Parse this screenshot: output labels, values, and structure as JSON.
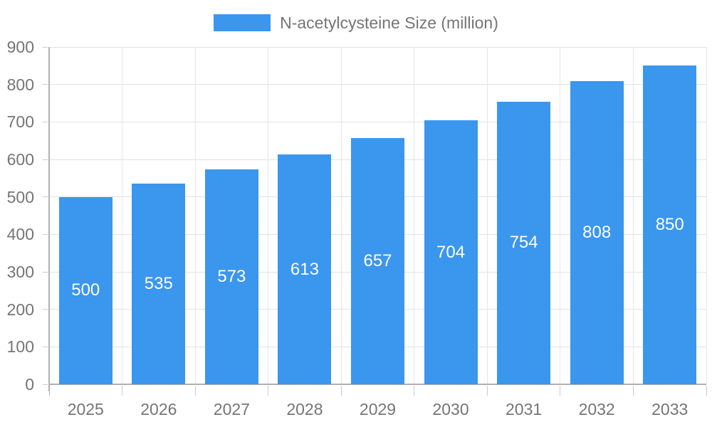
{
  "legend": {
    "label": "N-acetylcysteine Size (million)"
  },
  "colors": {
    "bar": "#3B96EE",
    "bar_label": "#FFFFFF",
    "axis_text": "#757575",
    "grid_horizontal": "#E2E2E2",
    "grid_vertical": "#E6E6E6",
    "axis_line": "#B0B0B0",
    "tick": "#CCCCCC"
  },
  "chart_data": {
    "type": "bar",
    "title": "N-acetylcysteine Size (million)",
    "categories": [
      "2025",
      "2026",
      "2027",
      "2028",
      "2029",
      "2030",
      "2031",
      "2032",
      "2033"
    ],
    "values": [
      500,
      535,
      573,
      613,
      657,
      704,
      754,
      808,
      850
    ],
    "series": [
      {
        "name": "N-acetylcysteine Size (million)",
        "values": [
          500,
          535,
          573,
          613,
          657,
          704,
          754,
          808,
          850
        ]
      }
    ],
    "xlabel": "",
    "ylabel": "",
    "ylim": [
      0,
      900
    ],
    "ytick_step": 100,
    "ytick_labels": [
      "0",
      "100",
      "200",
      "300",
      "400",
      "500",
      "600",
      "700",
      "800",
      "900"
    ],
    "grid": true,
    "legend_position": "top",
    "bar_value_labels_inside": true
  }
}
